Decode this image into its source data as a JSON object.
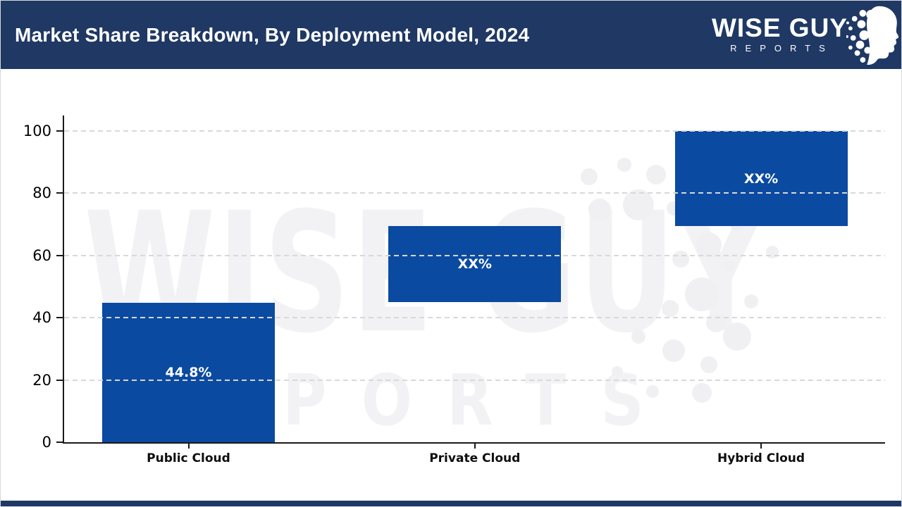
{
  "page": {
    "background": "#ffffff",
    "border_color": "#d9d9d9"
  },
  "header": {
    "background": "#1f3864",
    "title": "Market Share Breakdown, By Deployment Model, 2024",
    "logo": {
      "line1": "WISE GUY",
      "line2": "REPORTS",
      "color": "#ffffff"
    }
  },
  "watermark": {
    "line1": "WISE GUY",
    "line2": "REPORTS",
    "color": "#f2f2f4"
  },
  "chart_data": {
    "type": "bar",
    "subtype": "floating-waterfall",
    "title": "Market Share Breakdown, By Deployment Model, 2024",
    "categories": [
      "Public Cloud",
      "Private Cloud",
      "Hybrid Cloud"
    ],
    "segments": [
      {
        "category": "Public Cloud",
        "start": 0,
        "end": 44.8,
        "label": "44.8%"
      },
      {
        "category": "Private Cloud",
        "start": 45,
        "end": 69.3,
        "label": "XX%"
      },
      {
        "category": "Hybrid Cloud",
        "start": 69.3,
        "end": 100,
        "label": "XX%"
      }
    ],
    "yticks": [
      0,
      20,
      40,
      60,
      80,
      100
    ],
    "ylim": [
      0,
      105
    ],
    "xlabel": "",
    "ylabel": "",
    "grid": "horizontal-dashed",
    "legend": "none",
    "bar_color": "#0b4aa1",
    "bar_label_color": "#ffffff",
    "axis_color": "#1a1a1a",
    "grid_color": "#d8d8d8",
    "tick_label_color": "#000000"
  },
  "footer": {
    "background": "#1f3864"
  }
}
